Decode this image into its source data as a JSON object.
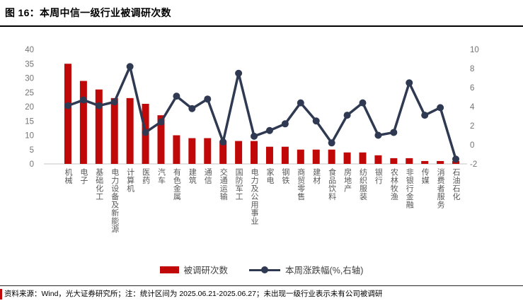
{
  "header": {
    "title": "图 16：本周中信一级行业被调研次数"
  },
  "legend": {
    "bar_label": "被调研次数",
    "line_label": "本周涨跌幅(%,右轴)"
  },
  "footer": {
    "text": "资料来源：Wind，光大证券研究所；注：统计区间为 2025.06.21-2025.06.27；未出现一级行业表示未有公司被调研"
  },
  "colors": {
    "bar": "#C00808",
    "line": "#2F3A52",
    "axis_tick_text": "#737373",
    "x_label_text": "#595959",
    "axis_line": "#D9D9D9"
  },
  "chart_data": {
    "type": "bar",
    "subtype": "combo-bar-line-dual-axis",
    "title": "图 16：本周中信一级行业被调研次数",
    "categories": [
      "机械",
      "电子",
      "基础化工",
      "电力设备及新能源",
      "计算机",
      "医药",
      "汽车",
      "有色金属",
      "建筑",
      "通信",
      "交通运输",
      "国防军工",
      "电力及公用事业",
      "家电",
      "钢铁",
      "商贸零售",
      "建材",
      "食品饮料",
      "房地产",
      "纺织服装",
      "银行",
      "农林牧渔",
      "非银行金融",
      "传媒",
      "消费者服务",
      "石油石化"
    ],
    "series": [
      {
        "name": "被调研次数",
        "type": "bar",
        "axis": "left",
        "values": [
          35,
          29,
          26,
          23,
          23,
          21,
          17,
          10,
          9,
          9,
          8,
          8,
          8,
          6,
          6,
          5,
          5,
          5,
          4,
          4,
          3,
          2,
          2,
          1,
          1,
          1
        ]
      },
      {
        "name": "本周涨跌幅(%,右轴)",
        "type": "line",
        "axis": "right",
        "values": [
          4.1,
          4.7,
          4.1,
          4.5,
          8.2,
          1.3,
          2.4,
          5.1,
          3.8,
          4.8,
          0.3,
          7.5,
          0.9,
          1.5,
          2.2,
          4.4,
          2.5,
          0.2,
          3.1,
          4.4,
          1.0,
          1.3,
          6.5,
          3.1,
          3.9,
          -1.5
        ]
      }
    ],
    "left_axis": {
      "min": 0,
      "max": 40,
      "step": 5,
      "ticks": [
        40,
        35,
        30,
        25,
        20,
        15,
        10,
        5,
        0
      ]
    },
    "right_axis": {
      "min": -2,
      "max": 10,
      "step": 2,
      "ticks": [
        10,
        8,
        6,
        4,
        2,
        0,
        -2
      ]
    },
    "grid": false,
    "legend_position": "bottom"
  }
}
